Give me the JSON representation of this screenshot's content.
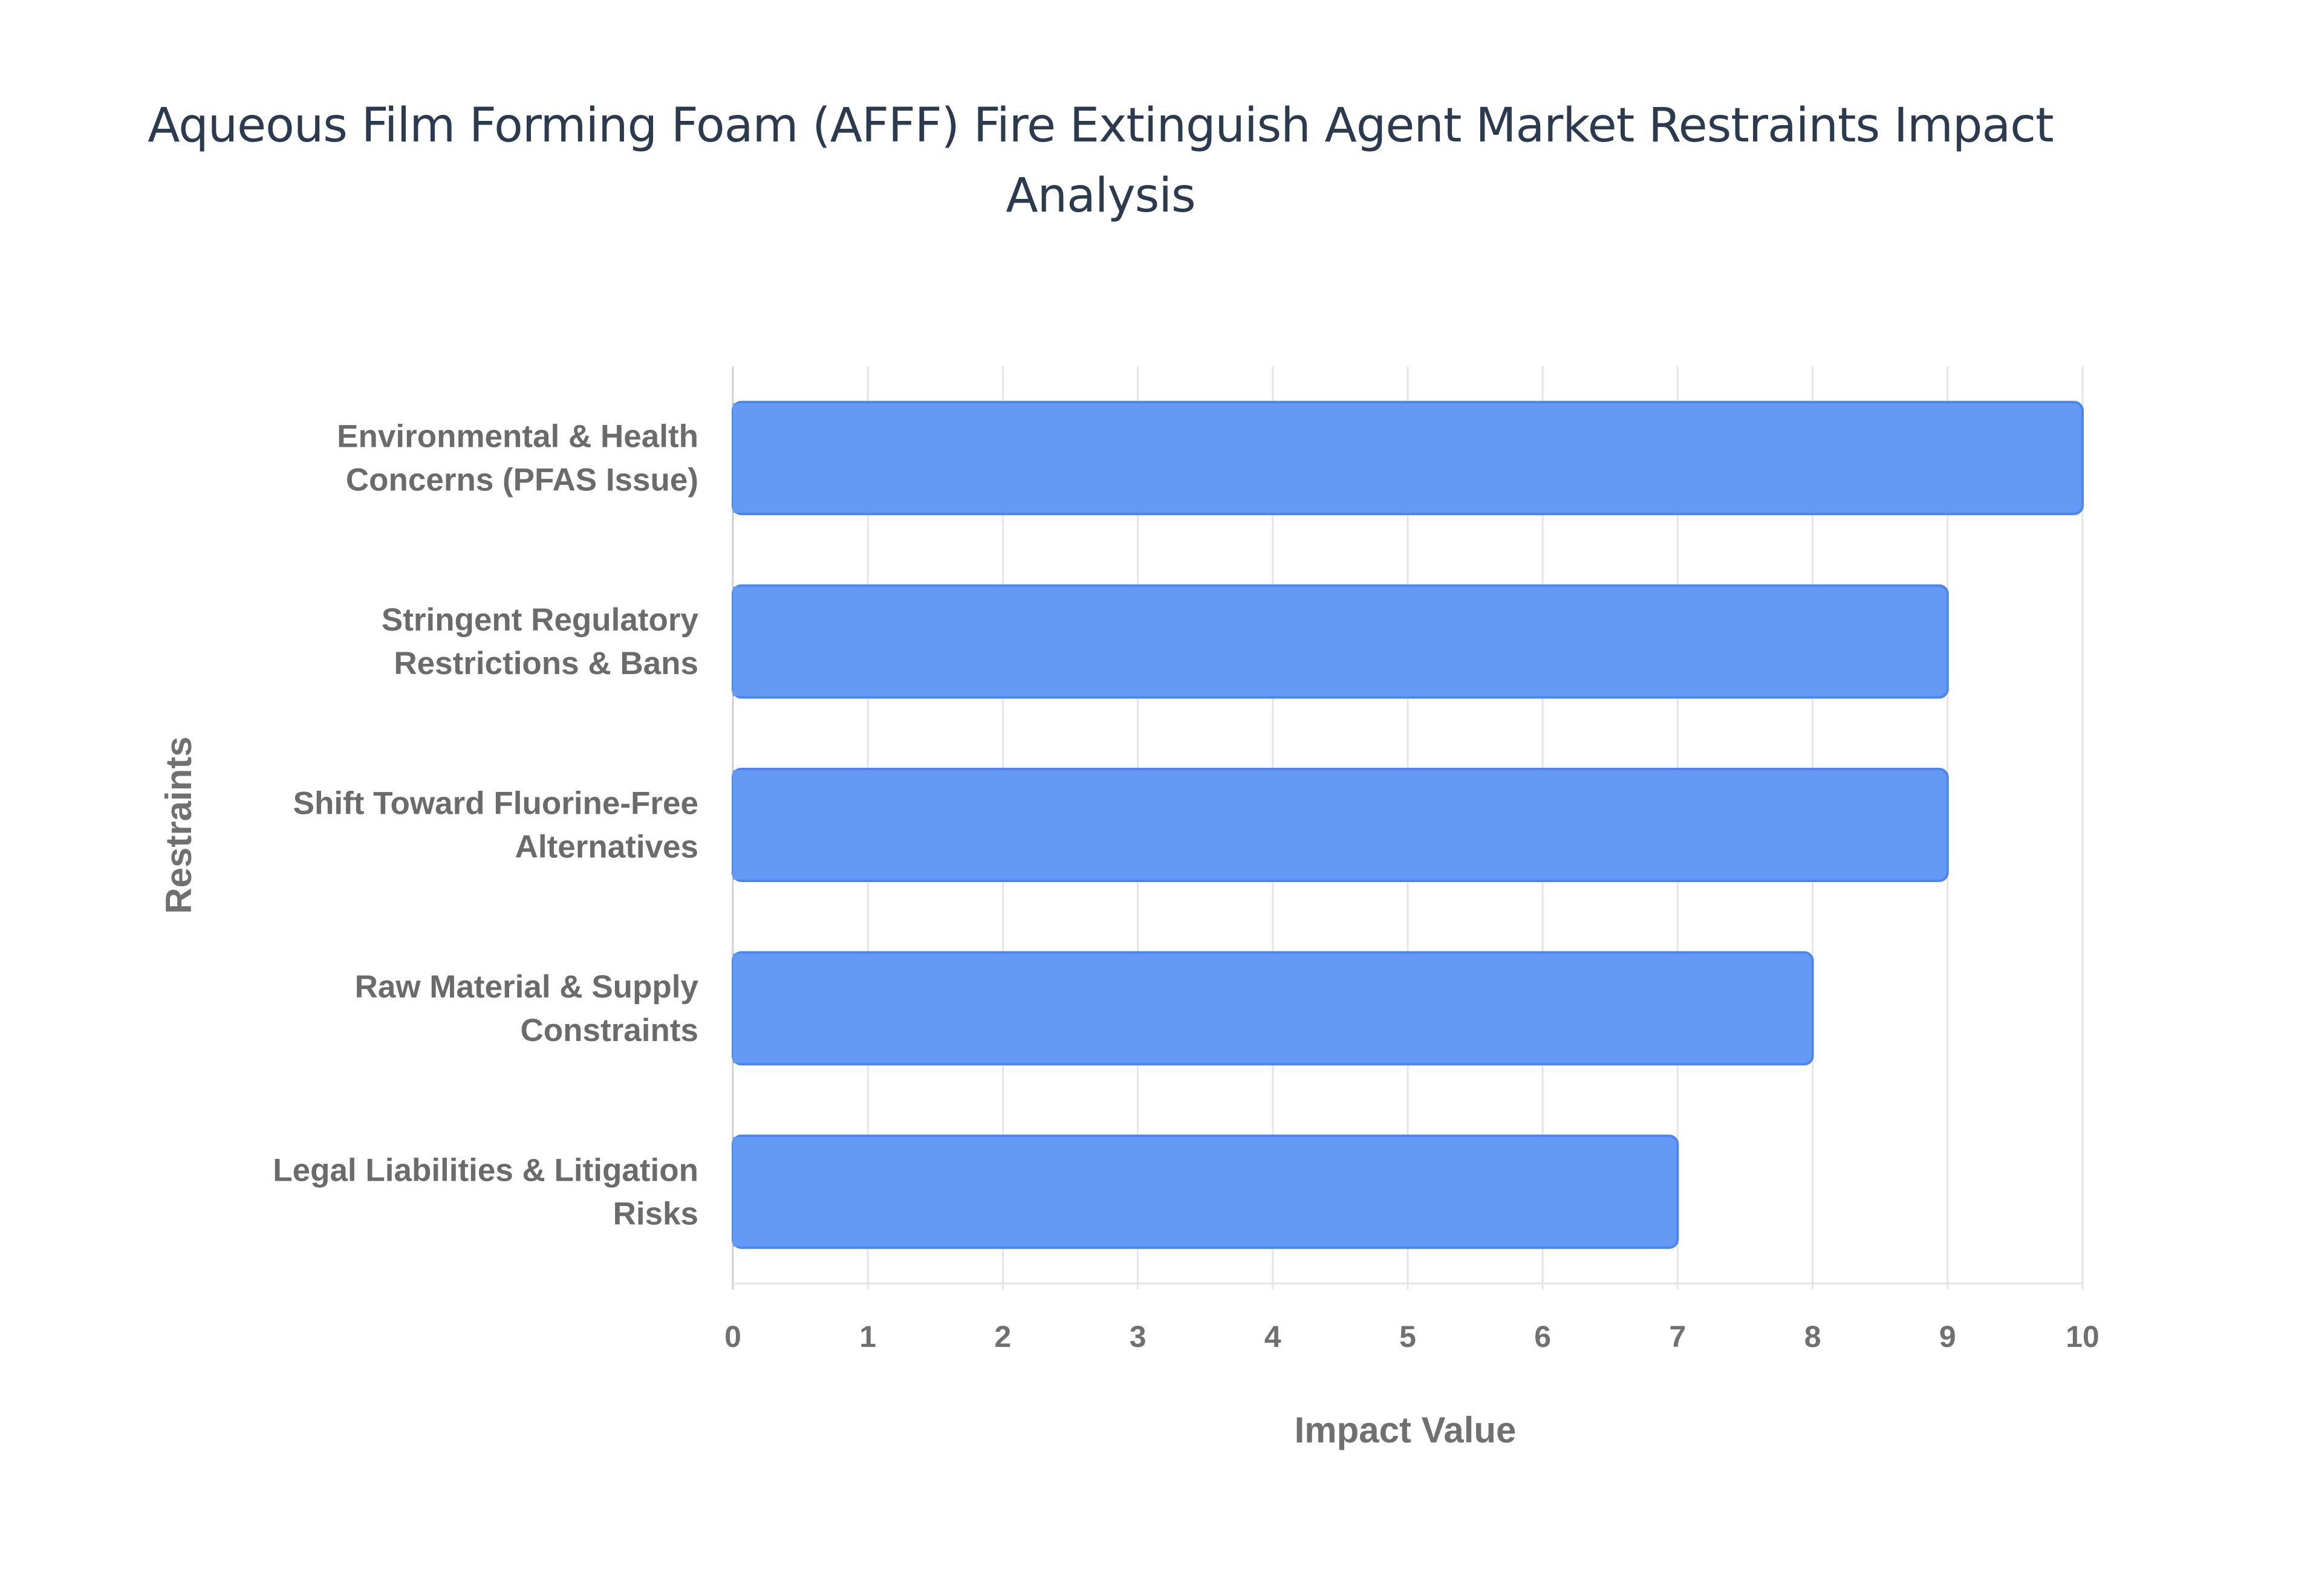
{
  "chart_data": {
    "type": "bar",
    "orientation": "horizontal",
    "title_lines": [
      "Aqueous Film Forming Foam (AFFF) Fire Extinguish Agent Market Restraints Impact",
      "Analysis"
    ],
    "xlabel": "Impact Value",
    "ylabel": "Restraints",
    "xlim": [
      0,
      10
    ],
    "xticks": [
      "0",
      "1",
      "2",
      "3",
      "4",
      "5",
      "6",
      "7",
      "8",
      "9",
      "10"
    ],
    "grid": true,
    "bar_color": "#6499f5",
    "categories": [
      [
        "Environmental & Health",
        "Concerns (PFAS Issue)"
      ],
      [
        "Stringent Regulatory",
        "Restrictions & Bans"
      ],
      [
        "Shift Toward Fluorine-Free",
        "Alternatives"
      ],
      [
        "Raw Material & Supply",
        "Constraints"
      ],
      [
        "Legal Liabilities & Litigation",
        "Risks"
      ]
    ],
    "values": [
      10,
      9,
      9,
      8,
      7
    ]
  }
}
